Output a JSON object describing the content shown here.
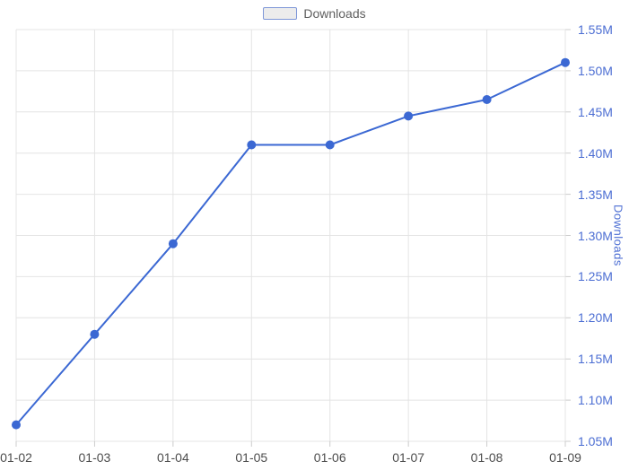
{
  "chart_data": {
    "type": "line",
    "title": "",
    "categories": [
      "01-02",
      "01-03",
      "01-04",
      "01-05",
      "01-06",
      "01-07",
      "01-08",
      "01-09"
    ],
    "series": [
      {
        "name": "Downloads",
        "values_millions": [
          1.07,
          1.18,
          1.29,
          1.41,
          1.41,
          1.445,
          1.465,
          1.51
        ],
        "color": "#3b68d3"
      }
    ],
    "xlabel": "",
    "ylabel": "Downloads",
    "y_axis_side": "right",
    "ylim_millions": [
      1.05,
      1.55
    ],
    "ytick_labels": [
      "1.05M",
      "1.10M",
      "1.15M",
      "1.20M",
      "1.25M",
      "1.30M",
      "1.35M",
      "1.40M",
      "1.45M",
      "1.50M",
      "1.55M"
    ],
    "grid": "on",
    "legend": {
      "label": "Downloads",
      "position": "top-center"
    }
  },
  "colors": {
    "line": "#3b68d3",
    "point": "#3b68d3",
    "y_tick_text": "#4c6ed3",
    "axis_title_text": "#4c6ed3",
    "x_tick_text": "#4c4c4c",
    "grid_line": "#e4e4e4",
    "tick_mark": "#cccccc",
    "legend_text": "#5f5f5f",
    "legend_swatch_fill": "#ececec",
    "legend_swatch_border": "#7e97d8",
    "background": "#ffffff"
  }
}
